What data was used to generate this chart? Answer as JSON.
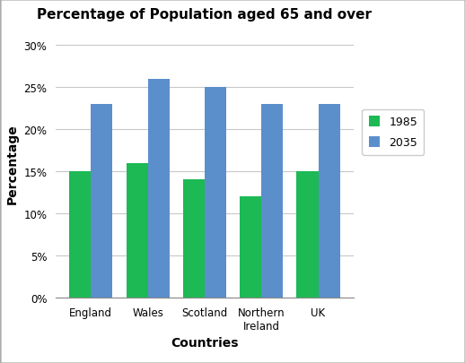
{
  "title": "Percentage of Population aged 65 and over",
  "xlabel": "Countries",
  "ylabel": "Percentage",
  "categories": [
    "England",
    "Wales",
    "Scotland",
    "Northern\nIreland",
    "UK"
  ],
  "values_1985": [
    0.15,
    0.16,
    0.14,
    0.12,
    0.15
  ],
  "values_2035": [
    0.23,
    0.26,
    0.25,
    0.23,
    0.23
  ],
  "color_1985": "#1db954",
  "color_2035": "#5b8fcc",
  "legend_labels": [
    "1985",
    "2035"
  ],
  "ylim": [
    0,
    0.32
  ],
  "yticks": [
    0,
    0.05,
    0.1,
    0.15,
    0.2,
    0.25,
    0.3
  ],
  "bar_width": 0.38,
  "background_color": "#ffffff",
  "grid_color": "#c8c8c8",
  "title_fontsize": 11,
  "axis_label_fontsize": 10,
  "tick_fontsize": 8.5,
  "legend_fontsize": 9
}
